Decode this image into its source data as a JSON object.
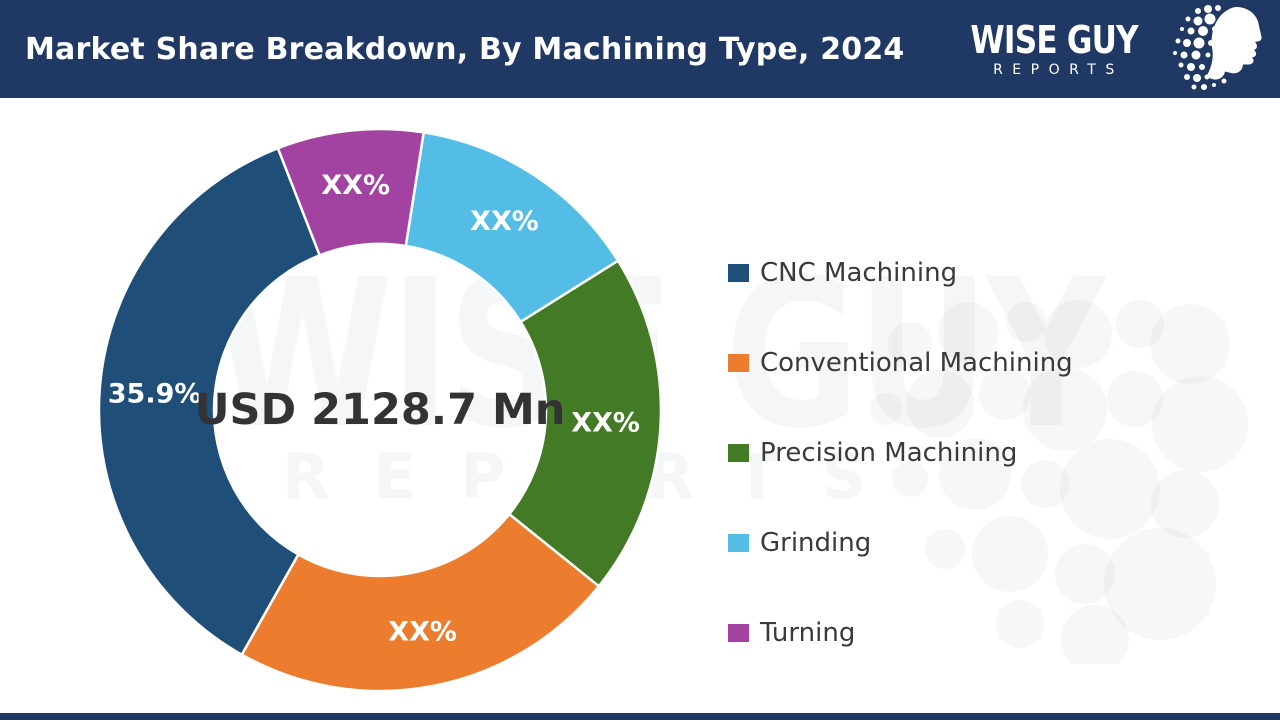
{
  "header": {
    "title": "Market Share Breakdown, By Machining Type, 2024",
    "logo": {
      "line1": "WISE GUY",
      "line2": "REPORTS"
    }
  },
  "watermark": {
    "line1": "WISE GUY",
    "line2": "REPORTS"
  },
  "chart_data": {
    "type": "pie",
    "subtype": "donut",
    "title": "Market Share Breakdown, By Machining Type, 2024",
    "center_label": "USD 2128.7 Mn",
    "categories": [
      "CNC Machining",
      "Conventional Machining",
      "Precision Machining",
      "Grinding",
      "Turning"
    ],
    "values": [
      35.9,
      22.4,
      19.7,
      13.6,
      8.4
    ],
    "slice_labels": [
      "35.9%",
      "XX%",
      "XX%",
      "XX%",
      "XX%"
    ],
    "colors": [
      "#1F4E79",
      "#EC7D2E",
      "#437A26",
      "#53BDE5",
      "#A343A1"
    ],
    "start_angle_deg": 338.7,
    "direction": "counterclockwise",
    "legend_position": "right",
    "notes": "Only CNC Machining share is revealed (35.9%); other slice values are masked as XX%. Donut total value USD 2128.7 Mn."
  }
}
